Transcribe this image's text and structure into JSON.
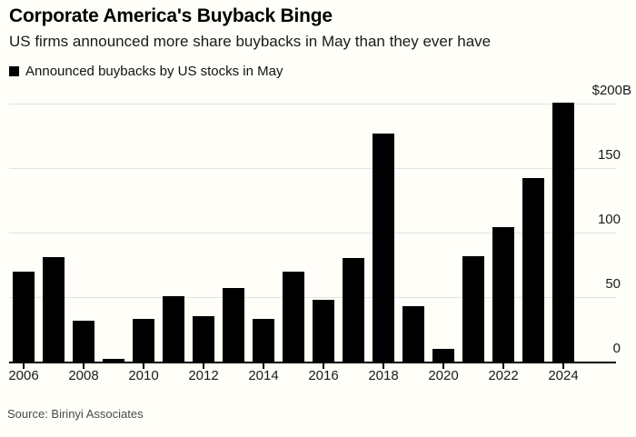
{
  "chart_data": {
    "type": "bar",
    "title": "Corporate America's Buyback Binge",
    "subtitle": "US firms announced more share buybacks in May than they ever have",
    "legend": "Announced buybacks by US stocks in May",
    "source": "Source: Birinyi Associates",
    "unit": "$B",
    "categories": [
      "2006",
      "2007",
      "2008",
      "2009",
      "2010",
      "2011",
      "2012",
      "2013",
      "2014",
      "2015",
      "2016",
      "2017",
      "2018",
      "2019",
      "2020",
      "2021",
      "2022",
      "2023",
      "2024"
    ],
    "values": [
      70,
      81,
      32,
      2,
      33,
      51,
      35,
      57,
      33,
      70,
      48,
      80,
      177,
      43,
      10,
      82,
      104,
      142,
      201
    ],
    "x_tick_labels": [
      "2006",
      "2008",
      "2010",
      "2012",
      "2014",
      "2016",
      "2018",
      "2020",
      "2022",
      "2024"
    ],
    "y_ticks": [
      {
        "label": "$200B",
        "value": 200
      },
      {
        "label": "150",
        "value": 150
      },
      {
        "label": "100",
        "value": 100
      },
      {
        "label": "50",
        "value": 50
      },
      {
        "label": "0",
        "value": 0
      }
    ],
    "ylim": [
      0,
      200
    ],
    "grid": "horizontal",
    "legend_position": "top-left",
    "colors": {
      "bar": "#000000",
      "gridline": "#e3e3e3",
      "axis": "#000000",
      "background": "#fffef9",
      "text": "#1a1a1a",
      "source_text": "#4a4a4a"
    }
  }
}
